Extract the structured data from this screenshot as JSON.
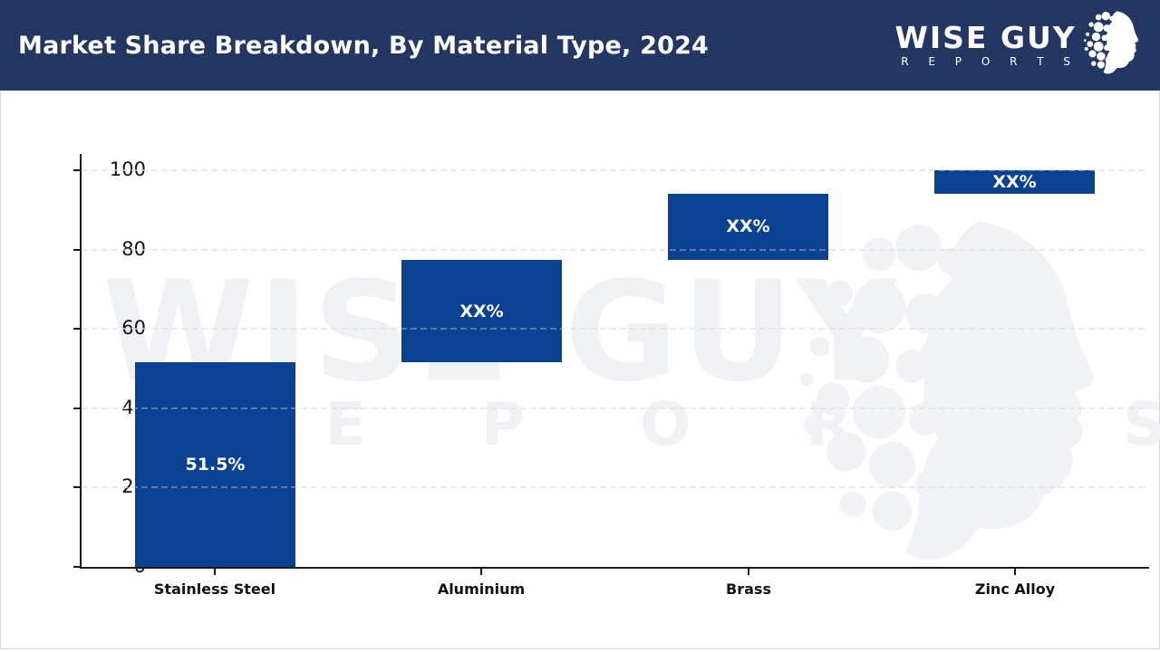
{
  "header": {
    "title": "Market Share Breakdown, By Material Type, 2024",
    "logo": {
      "line1": "WISE GUY",
      "line2": "REPORTS"
    }
  },
  "watermark": {
    "line1": "WISE GUY",
    "line2": "REPORTS"
  },
  "chart_data": {
    "type": "bar",
    "subtype": "waterfall",
    "title": "Market Share Breakdown, By Material Type, 2024",
    "categories": [
      "Stainless Steel",
      "Aluminium",
      "Brass",
      "Zinc Alloy"
    ],
    "segments": [
      {
        "category": "Stainless Steel",
        "start": 0,
        "end": 51.5,
        "label": "51.5%"
      },
      {
        "category": "Aluminium",
        "start": 51.5,
        "end": 77.5,
        "label": "XX%"
      },
      {
        "category": "Brass",
        "start": 77.5,
        "end": 94,
        "label": "XX%"
      },
      {
        "category": "Zinc Alloy",
        "start": 94,
        "end": 100,
        "label": "XX%"
      }
    ],
    "xlabel": "",
    "ylabel": "",
    "ylim": [
      0,
      100
    ],
    "yticks": [
      0,
      20,
      40,
      60,
      80,
      100
    ],
    "grid": "horizontal-dashed",
    "legend": "none",
    "bar_color": "#0a4191",
    "bar_label_color": "#ffffff",
    "axis_color": "#1a1a1a"
  }
}
